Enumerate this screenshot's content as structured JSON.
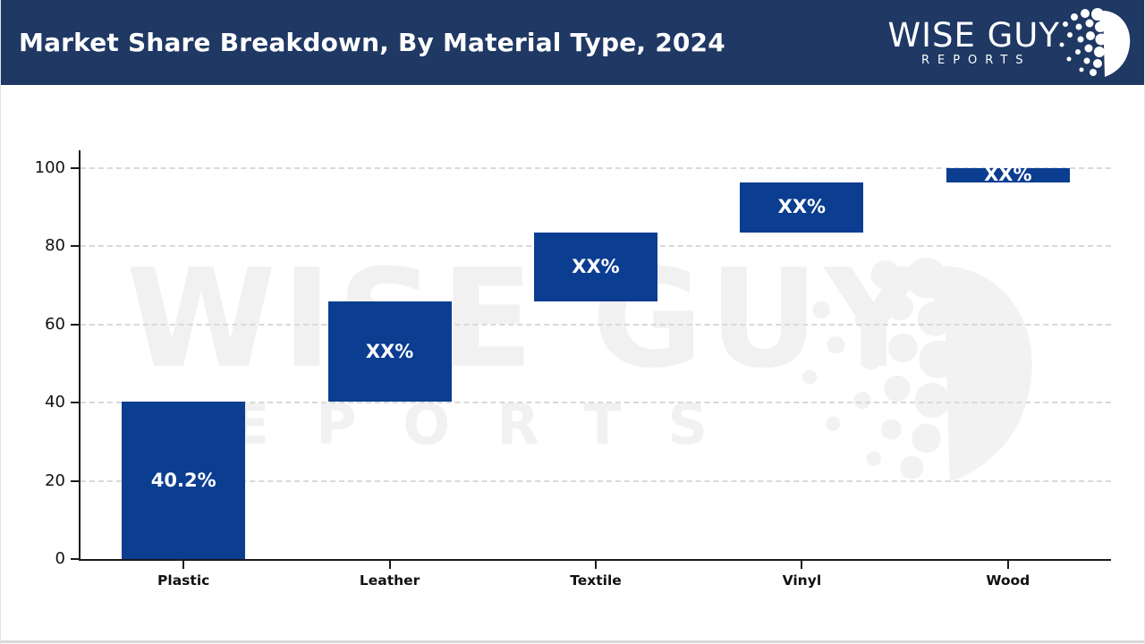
{
  "header": {
    "title": "Market Share Breakdown, By Material Type, 2024",
    "bg_color": "#1f3864",
    "logo": {
      "line1": "WISE GUY",
      "line2": "REPORTS"
    }
  },
  "watermark": {
    "line1": "WISE GUY",
    "line2": "REPORTS"
  },
  "chart_data": {
    "type": "bar",
    "subtype": "waterfall",
    "title": "Market Share Breakdown, By Material Type, 2024",
    "categories": [
      "Plastic",
      "Leather",
      "Textile",
      "Vinyl",
      "Wood"
    ],
    "segments": [
      {
        "category": "Plastic",
        "start": 0,
        "end": 40.2,
        "label": "40.2%"
      },
      {
        "category": "Leather",
        "start": 40.2,
        "end": 65.8,
        "label": "XX%"
      },
      {
        "category": "Textile",
        "start": 65.8,
        "end": 83.4,
        "label": "XX%"
      },
      {
        "category": "Vinyl",
        "start": 83.4,
        "end": 96.3,
        "label": "XX%"
      },
      {
        "category": "Wood",
        "start": 96.3,
        "end": 100,
        "label": "XX%"
      }
    ],
    "yticks": [
      0,
      20,
      40,
      60,
      80,
      100
    ],
    "ylim": [
      0,
      105
    ],
    "xlabel": "",
    "ylabel": "",
    "bar_color": "#0b3d91",
    "bar_label_color": "#ffffff",
    "grid": "horizontal-dashed",
    "legend": "none"
  }
}
